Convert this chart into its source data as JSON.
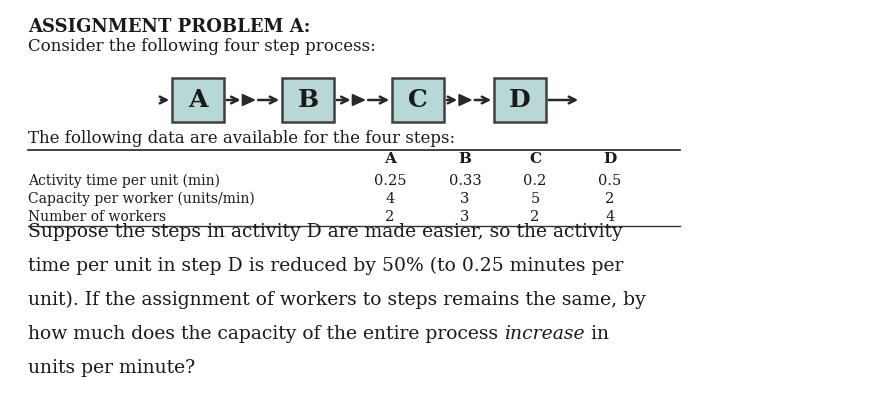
{
  "title": "ASSIGNMENT PROBLEM A:",
  "subtitle": "Consider the following four step process:",
  "steps": [
    "A",
    "B",
    "C",
    "D"
  ],
  "table_headers": [
    "A",
    "B",
    "C",
    "D"
  ],
  "table_rows": [
    [
      "Activity time per unit (min)",
      "0.25",
      "0.33",
      "0.2",
      "0.5"
    ],
    [
      "Capacity per worker (units/min)",
      "4",
      "3",
      "5",
      "2"
    ],
    [
      "Number of workers",
      "2",
      "3",
      "2",
      "4"
    ]
  ],
  "body_lines": [
    "Suppose the steps in activity D are made easier, so the activity",
    "time per unit in step D is reduced by 50% (to 0.25 minutes per",
    "unit). If the assignment of workers to steps remains the same, by",
    "how much does the capacity of the entire process {increase} in",
    "units per minute?"
  ],
  "box_facecolor": "#b8d8d8",
  "box_edgecolor": "#404040",
  "background_color": "#ffffff",
  "text_color": "#1a1a1a"
}
